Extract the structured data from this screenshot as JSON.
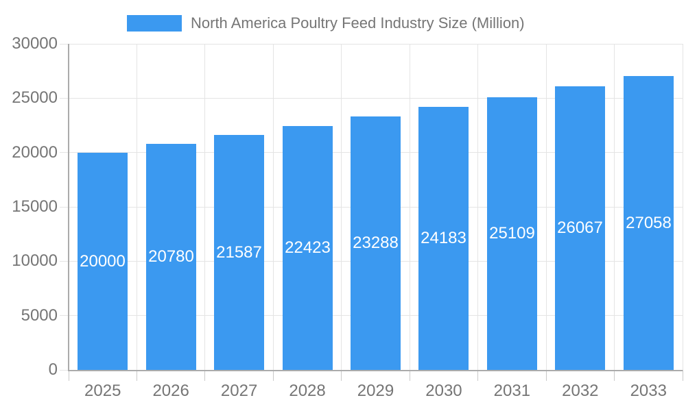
{
  "legend": {
    "label": "North America Poultry Feed Industry Size (Million)",
    "swatch_color": "#3b99f0"
  },
  "chart_data": {
    "type": "bar",
    "title": "North America Poultry Feed Industry Size (Million)",
    "categories": [
      "2025",
      "2026",
      "2027",
      "2028",
      "2029",
      "2030",
      "2031",
      "2032",
      "2033"
    ],
    "values": [
      20000,
      20780,
      21587,
      22423,
      23288,
      24183,
      25109,
      26067,
      27058
    ],
    "xlabel": "",
    "ylabel": "",
    "ylim": [
      0,
      30000
    ],
    "yticks": [
      0,
      5000,
      10000,
      15000,
      20000,
      25000,
      30000
    ],
    "grid": true,
    "legend_position": "top",
    "colors": {
      "bar": "#3b99f0",
      "value_label": "#ffffff",
      "axis_label": "#757575",
      "gridline": "#e4e4e4",
      "axis_line": "#ababab",
      "tick": "#c9c9c9",
      "background": "#ffffff"
    }
  }
}
